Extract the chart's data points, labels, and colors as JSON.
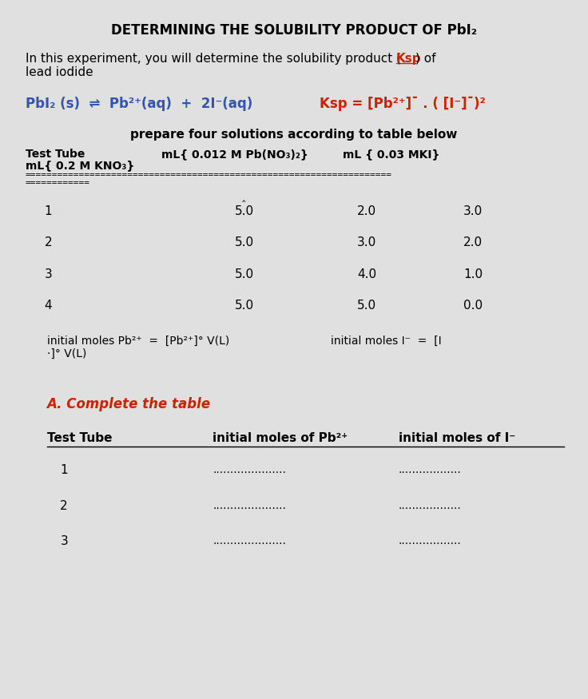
{
  "title": "DETERMINING THE SOLUBILITY PRODUCT OF PbI₂",
  "bg_color": "#e0e0e0",
  "blue_color": "#3355aa",
  "red_color": "#cc2200",
  "prepare_text": "prepare four solutions according to table below",
  "table_data": [
    [
      "1",
      "5.0",
      "2.0",
      "3.0"
    ],
    [
      "2",
      "5.0",
      "3.0",
      "2.0"
    ],
    [
      "3",
      "5.0",
      "4.0",
      "1.0"
    ],
    [
      "4",
      "5.0",
      "5.0",
      "0.0"
    ]
  ],
  "table2_rows": [
    "1",
    "2",
    "3"
  ]
}
